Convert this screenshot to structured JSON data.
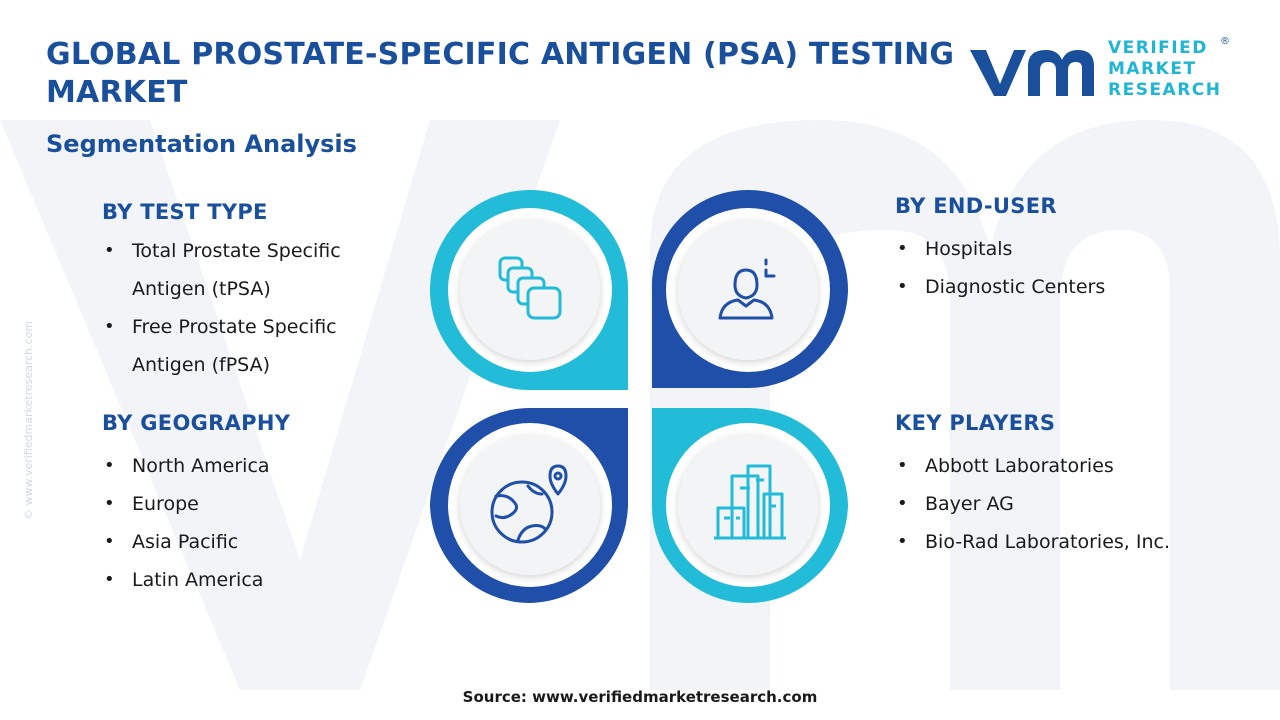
{
  "header": {
    "title": "GLOBAL PROSTATE-SPECIFIC ANTIGEN (PSA) TESTING MARKET",
    "subtitle": "Segmentation Analysis"
  },
  "logo": {
    "line1": "VERIFIED",
    "line2": "MARKET",
    "line3": "RESEARCH",
    "registered": "®"
  },
  "segments": {
    "test_type": {
      "heading": "BY TEST TYPE",
      "items": [
        "Total Prostate Specific Antigen (tPSA)",
        "Free Prostate Specific Antigen (fPSA)"
      ]
    },
    "geography": {
      "heading": "BY GEOGRAPHY",
      "items": [
        "North America",
        "Europe",
        "Asia Pacific",
        "Latin America"
      ]
    },
    "end_user": {
      "heading": "BY END-USER",
      "items": [
        "Hospitals",
        "Diagnostic Centers"
      ]
    },
    "key_players": {
      "heading": "KEY PLAYERS",
      "items": [
        "Abbott Laboratories",
        "Bayer AG",
        "Bio-Rad Laboratories, Inc."
      ]
    }
  },
  "icons": {
    "top_left": "stacked-cards-icon",
    "top_right": "person-user-icon",
    "bottom_left": "globe-location-icon",
    "bottom_right": "city-buildings-icon"
  },
  "colors": {
    "dark_blue": "#1a4f9c",
    "cyan": "#1fb6d4",
    "petal_dark": "#1f4fa8",
    "petal_light": "#22bcd8"
  },
  "source": "Source: www.verifiedmarketresearch.com",
  "side_credit": "© www.verifiedmarketresearch.com"
}
